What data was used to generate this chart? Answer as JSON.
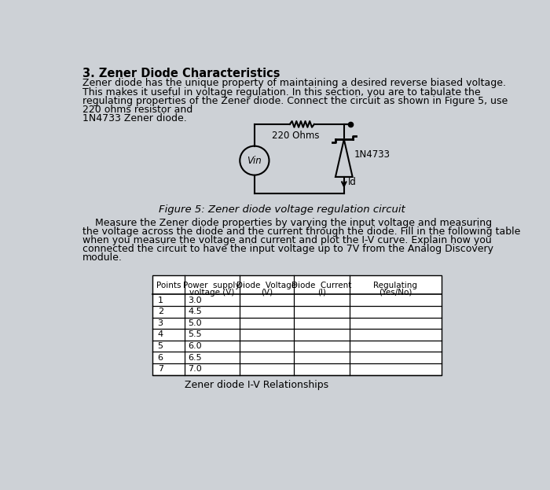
{
  "title": "3. Zener Diode Characteristics",
  "bg_color": "#cdd1d6",
  "text_color": "#1a1a1a",
  "para1_lines": [
    "Zener diode has the unique property of maintaining a desired reverse biased voltage.",
    "This makes it useful in voltage regulation. In this section, you are to tabulate the",
    "regulating properties of the Zener diode. Connect the circuit as shown in Figure 5, use",
    "220 ohms resistor and",
    "1N4733 Zener diode."
  ],
  "figure_caption": "Figure 5: Zener diode voltage regulation circuit",
  "para2_lines": [
    "    Measure the Zener diode properties by varying the input voltage and measuring",
    "the voltage across the diode and the current through the diode. Fill in the following table",
    "when you measure the voltage and current and plot the I-V curve. Explain how you",
    "connected the circuit to have the input voltage up to 7V from the Analog Discovery",
    "module."
  ],
  "table_caption": "Zener diode I-V Relationships",
  "table_rows": [
    [
      "1",
      "3.0"
    ],
    [
      "2",
      "4.5"
    ],
    [
      "3",
      "5.0"
    ],
    [
      "4",
      "5.5"
    ],
    [
      "5",
      "6.0"
    ],
    [
      "6",
      "6.5"
    ],
    [
      "7",
      "7.0"
    ]
  ],
  "circuit_vin": "Vin",
  "circuit_res": "220 Ohms",
  "circuit_diode": "1N4733",
  "circuit_id": "Id",
  "header_row1": [
    "Points",
    "Power  supply",
    "Diode  Voltage",
    "Diode  Current",
    "Regulating"
  ],
  "header_row2": [
    "",
    "voltage (V)",
    "(V)",
    "(I)",
    "(Yes/No)"
  ]
}
